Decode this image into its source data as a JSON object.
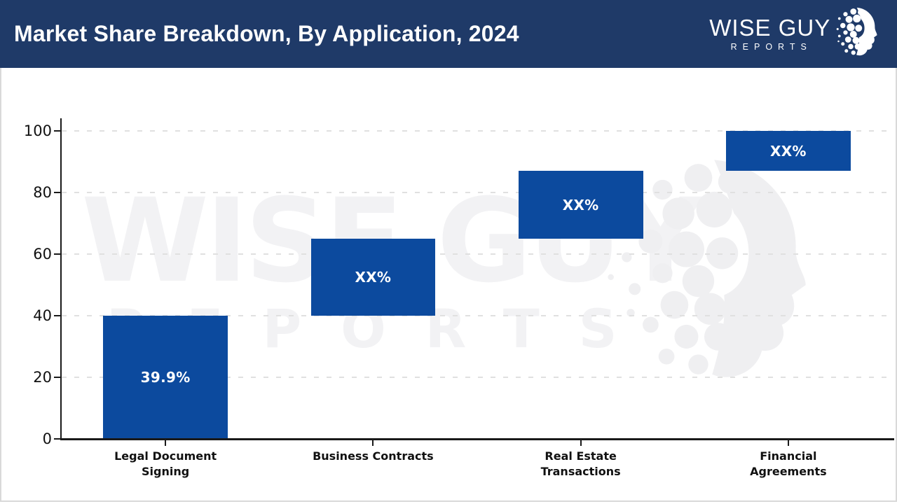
{
  "header": {
    "title": "Market Share Breakdown, By Application, 2024",
    "bg_color": "#1f3a68",
    "logo": {
      "line1": "WISE GUY",
      "line2": "REPORTS",
      "icon": "dotted-head-profile"
    }
  },
  "watermark": {
    "line1": "WISE GUY",
    "line2": "REPORTS",
    "icon": "dotted-head-profile"
  },
  "chart_data": {
    "type": "bar",
    "subtype": "floating-waterfall",
    "title": "Market Share Breakdown, By Application, 2024",
    "categories": [
      "Legal Document Signing",
      "Business Contracts",
      "Real Estate Transactions",
      "Financial Agreements"
    ],
    "category_label_lines": [
      [
        "Legal Document",
        "Signing"
      ],
      [
        "Business Contracts"
      ],
      [
        "Real Estate",
        "Transactions"
      ],
      [
        "Financial",
        "Agreements"
      ]
    ],
    "segments": [
      [
        0,
        40
      ],
      [
        40,
        65
      ],
      [
        65,
        87
      ],
      [
        87,
        100
      ]
    ],
    "bar_labels": [
      "39.9%",
      "XX%",
      "XX%",
      "XX%"
    ],
    "xlabel": "",
    "ylabel": "",
    "ylim": [
      0,
      100
    ],
    "yticks": [
      0,
      20,
      40,
      60,
      80,
      100
    ],
    "grid": "horizontal-dashed",
    "legend": "none",
    "bar_color": "#0c4a9e",
    "bar_label_color": "#ffffff",
    "axis_color": "#1a1a1a",
    "grid_color": "#e0e0e0"
  }
}
